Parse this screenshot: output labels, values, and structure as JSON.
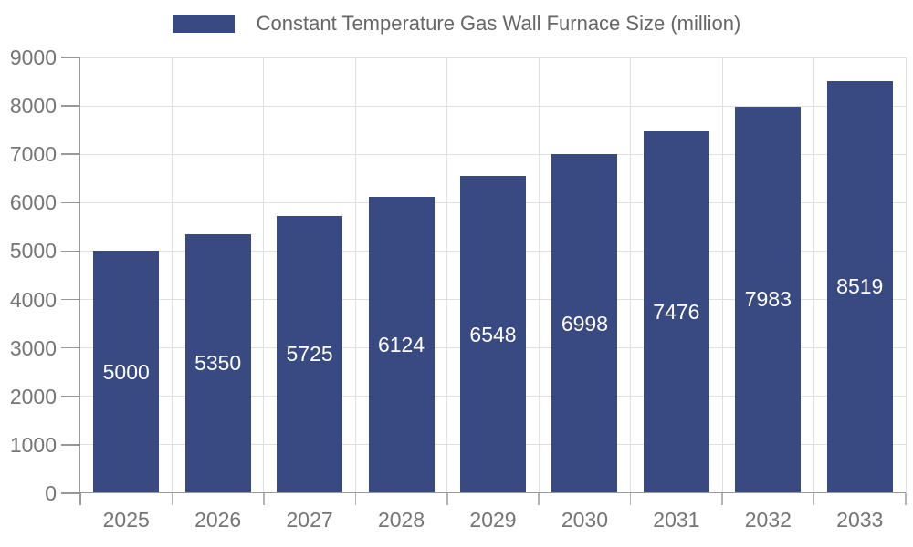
{
  "chart_data": {
    "type": "bar",
    "title": "Constant Temperature Gas Wall Furnace Size (million)",
    "legend_position": "top",
    "categories": [
      "2025",
      "2026",
      "2027",
      "2028",
      "2029",
      "2030",
      "2031",
      "2032",
      "2033"
    ],
    "series": [
      {
        "name": "Constant Temperature Gas Wall Furnace Size (million)",
        "values": [
          5000,
          5350,
          5725,
          6124,
          6548,
          6998,
          7476,
          7983,
          8519
        ]
      }
    ],
    "bar_labels_inside": true,
    "xlabel": "",
    "ylabel": "",
    "ylim": [
      0,
      9000
    ],
    "y_tick_interval": 1000,
    "y_ticks": [
      0,
      1000,
      2000,
      3000,
      4000,
      5000,
      6000,
      7000,
      8000,
      9000
    ],
    "grid": true,
    "colors": {
      "bar": "#394a82",
      "bar_label": "#ffffff",
      "axis_text": "#757575",
      "legend_text": "#666666",
      "grid": "#e0e0e0",
      "axis_line": "#999999",
      "tick": "#b3b3b3",
      "background": "#ffffff"
    }
  }
}
